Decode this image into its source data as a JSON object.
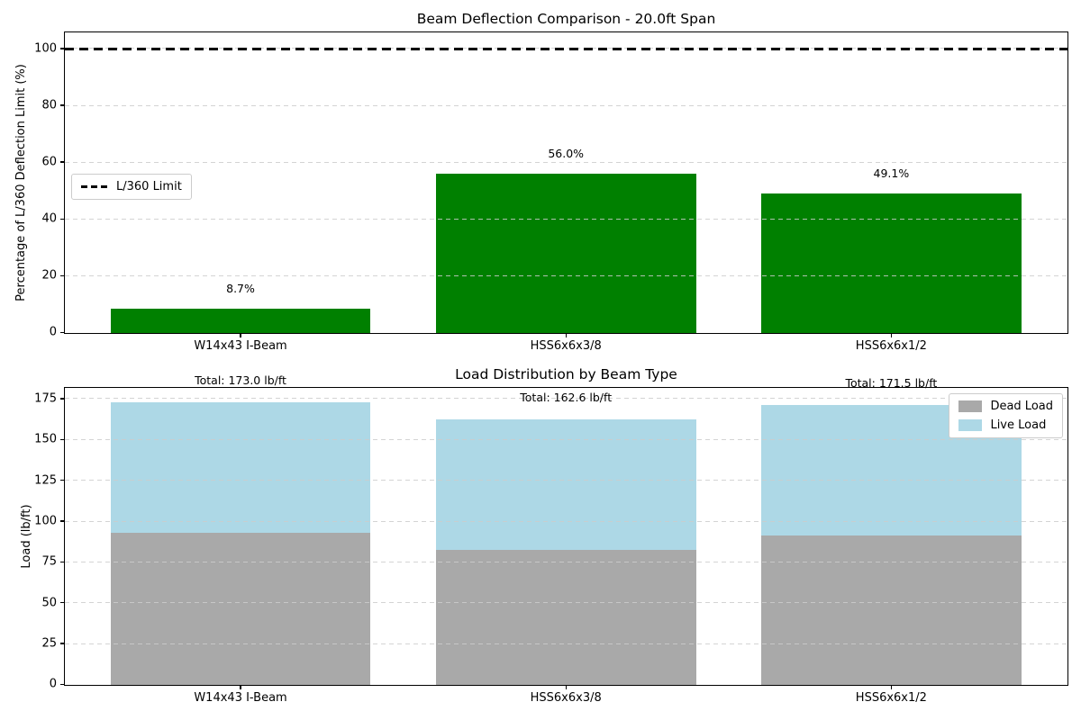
{
  "chart_data": [
    {
      "type": "bar",
      "title": "Beam Deflection Comparison - 20.0ft Span",
      "ylabel": "Percentage of L/360 Deflection Limit (%)",
      "xlabel": "",
      "categories": [
        "W14x43 I-Beam",
        "HSS6x6x3/8",
        "HSS6x6x1/2"
      ],
      "values": [
        8.7,
        56.0,
        49.1
      ],
      "value_labels": [
        "8.7%",
        "56.0%",
        "49.1%"
      ],
      "bar_color": "#008000",
      "yticks": [
        0,
        20,
        40,
        60,
        80,
        100
      ],
      "ylim": [
        0,
        105.7
      ],
      "grid": "horizontal-dashed",
      "ref_line": {
        "value": 100,
        "label": "L/360 Limit",
        "color": "#000000",
        "style": "dashed"
      },
      "legend_position": "center-left"
    },
    {
      "type": "stacked-bar",
      "title": "Load Distribution by Beam Type",
      "ylabel": "Load (lb/ft)",
      "xlabel": "",
      "categories": [
        "W14x43 I-Beam",
        "HSS6x6x3/8",
        "HSS6x6x1/2"
      ],
      "series": [
        {
          "name": "Dead Load",
          "color": "#A9A9A9",
          "values": [
            93.0,
            82.6,
            91.5
          ]
        },
        {
          "name": "Live Load",
          "color": "#ADD8E6",
          "values": [
            80.0,
            80.0,
            80.0
          ]
        }
      ],
      "totals": [
        173.0,
        162.6,
        171.5
      ],
      "total_labels": [
        "Total: 173.0 lb/ft",
        "Total: 162.6 lb/ft",
        "Total: 171.5 lb/ft"
      ],
      "yticks": [
        0,
        25,
        50,
        75,
        100,
        125,
        150,
        175
      ],
      "ylim": [
        0,
        181.6
      ],
      "grid": "horizontal-dashed",
      "legend_position": "top-right"
    }
  ]
}
